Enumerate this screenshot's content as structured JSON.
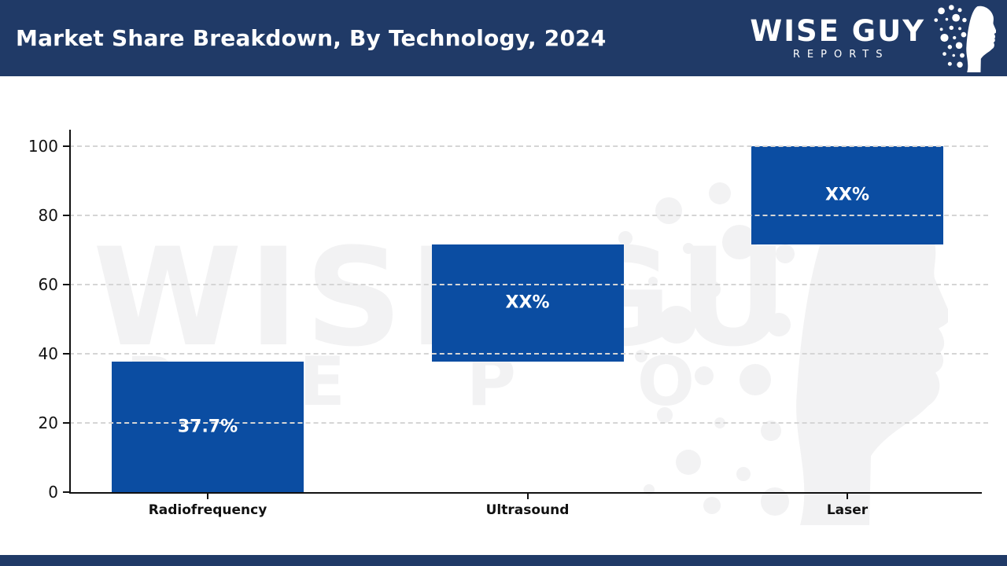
{
  "header": {
    "title": "Market Share Breakdown, By Technology, 2024",
    "bg_color": "#203a67",
    "logo": {
      "line1": "WISE GUY",
      "line2": "REPORTS"
    }
  },
  "footer": {
    "bg_color": "#203a67"
  },
  "watermark": {
    "line1": "WISE GU",
    "line2": "R E P O R"
  },
  "chart_data": {
    "type": "bar",
    "subtype": "waterfall",
    "title": "Market Share Breakdown, By Technology, 2024",
    "categories": [
      "Radiofrequency",
      "Ultrasound",
      "Laser"
    ],
    "series": [
      {
        "name": "Market Share",
        "segments": [
          {
            "category": "Radiofrequency",
            "start": 0,
            "end": 37.7,
            "label": "37.7%"
          },
          {
            "category": "Ultrasound",
            "start": 37.7,
            "end": 71.7,
            "label": "XX%"
          },
          {
            "category": "Laser",
            "start": 71.7,
            "end": 100,
            "label": "XX%"
          }
        ]
      }
    ],
    "xlabel": "",
    "ylabel": "",
    "ylim": [
      0,
      105
    ],
    "yticks": [
      0,
      20,
      40,
      60,
      80,
      100
    ],
    "grid": true,
    "gridline_style": "dashed",
    "gridline_color": "#d5d5d5",
    "bar_color": "#0b4da2",
    "bar_label_color": "#ffffff",
    "axis_color": "#111111",
    "legend": "none"
  }
}
